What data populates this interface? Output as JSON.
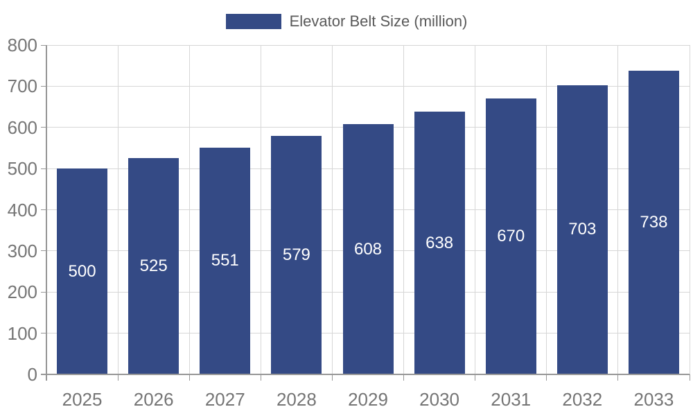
{
  "legend": {
    "label": "Elevator Belt Size (million)",
    "swatch_color": "#344a85"
  },
  "colors": {
    "bar": "#344a85",
    "bar_label_text": "#ffffff",
    "tick_text": "#757575",
    "legend_text": "#595959",
    "axis_line": "#969696",
    "gridline": "#d6d6d6",
    "background": "#ffffff"
  },
  "chart_data": {
    "type": "bar",
    "title": "Elevator Belt Size (million)",
    "series_name": "Elevator Belt Size (million)",
    "categories": [
      "2025",
      "2026",
      "2027",
      "2028",
      "2029",
      "2030",
      "2031",
      "2032",
      "2033"
    ],
    "values": [
      500,
      525,
      551,
      579,
      608,
      638,
      670,
      703,
      738
    ],
    "data_labels": [
      "500",
      "525",
      "551",
      "579",
      "608",
      "638",
      "670",
      "703",
      "738"
    ],
    "xlabel": "",
    "ylabel": "",
    "ylim": [
      0,
      800
    ],
    "yticks": [
      0,
      100,
      200,
      300,
      400,
      500,
      600,
      700,
      800
    ],
    "grid": true,
    "grid_horizontal": true,
    "grid_vertical": true,
    "legend_position": "top-center",
    "bar_color": "#344a85",
    "bar_label_position": "inside-center"
  }
}
